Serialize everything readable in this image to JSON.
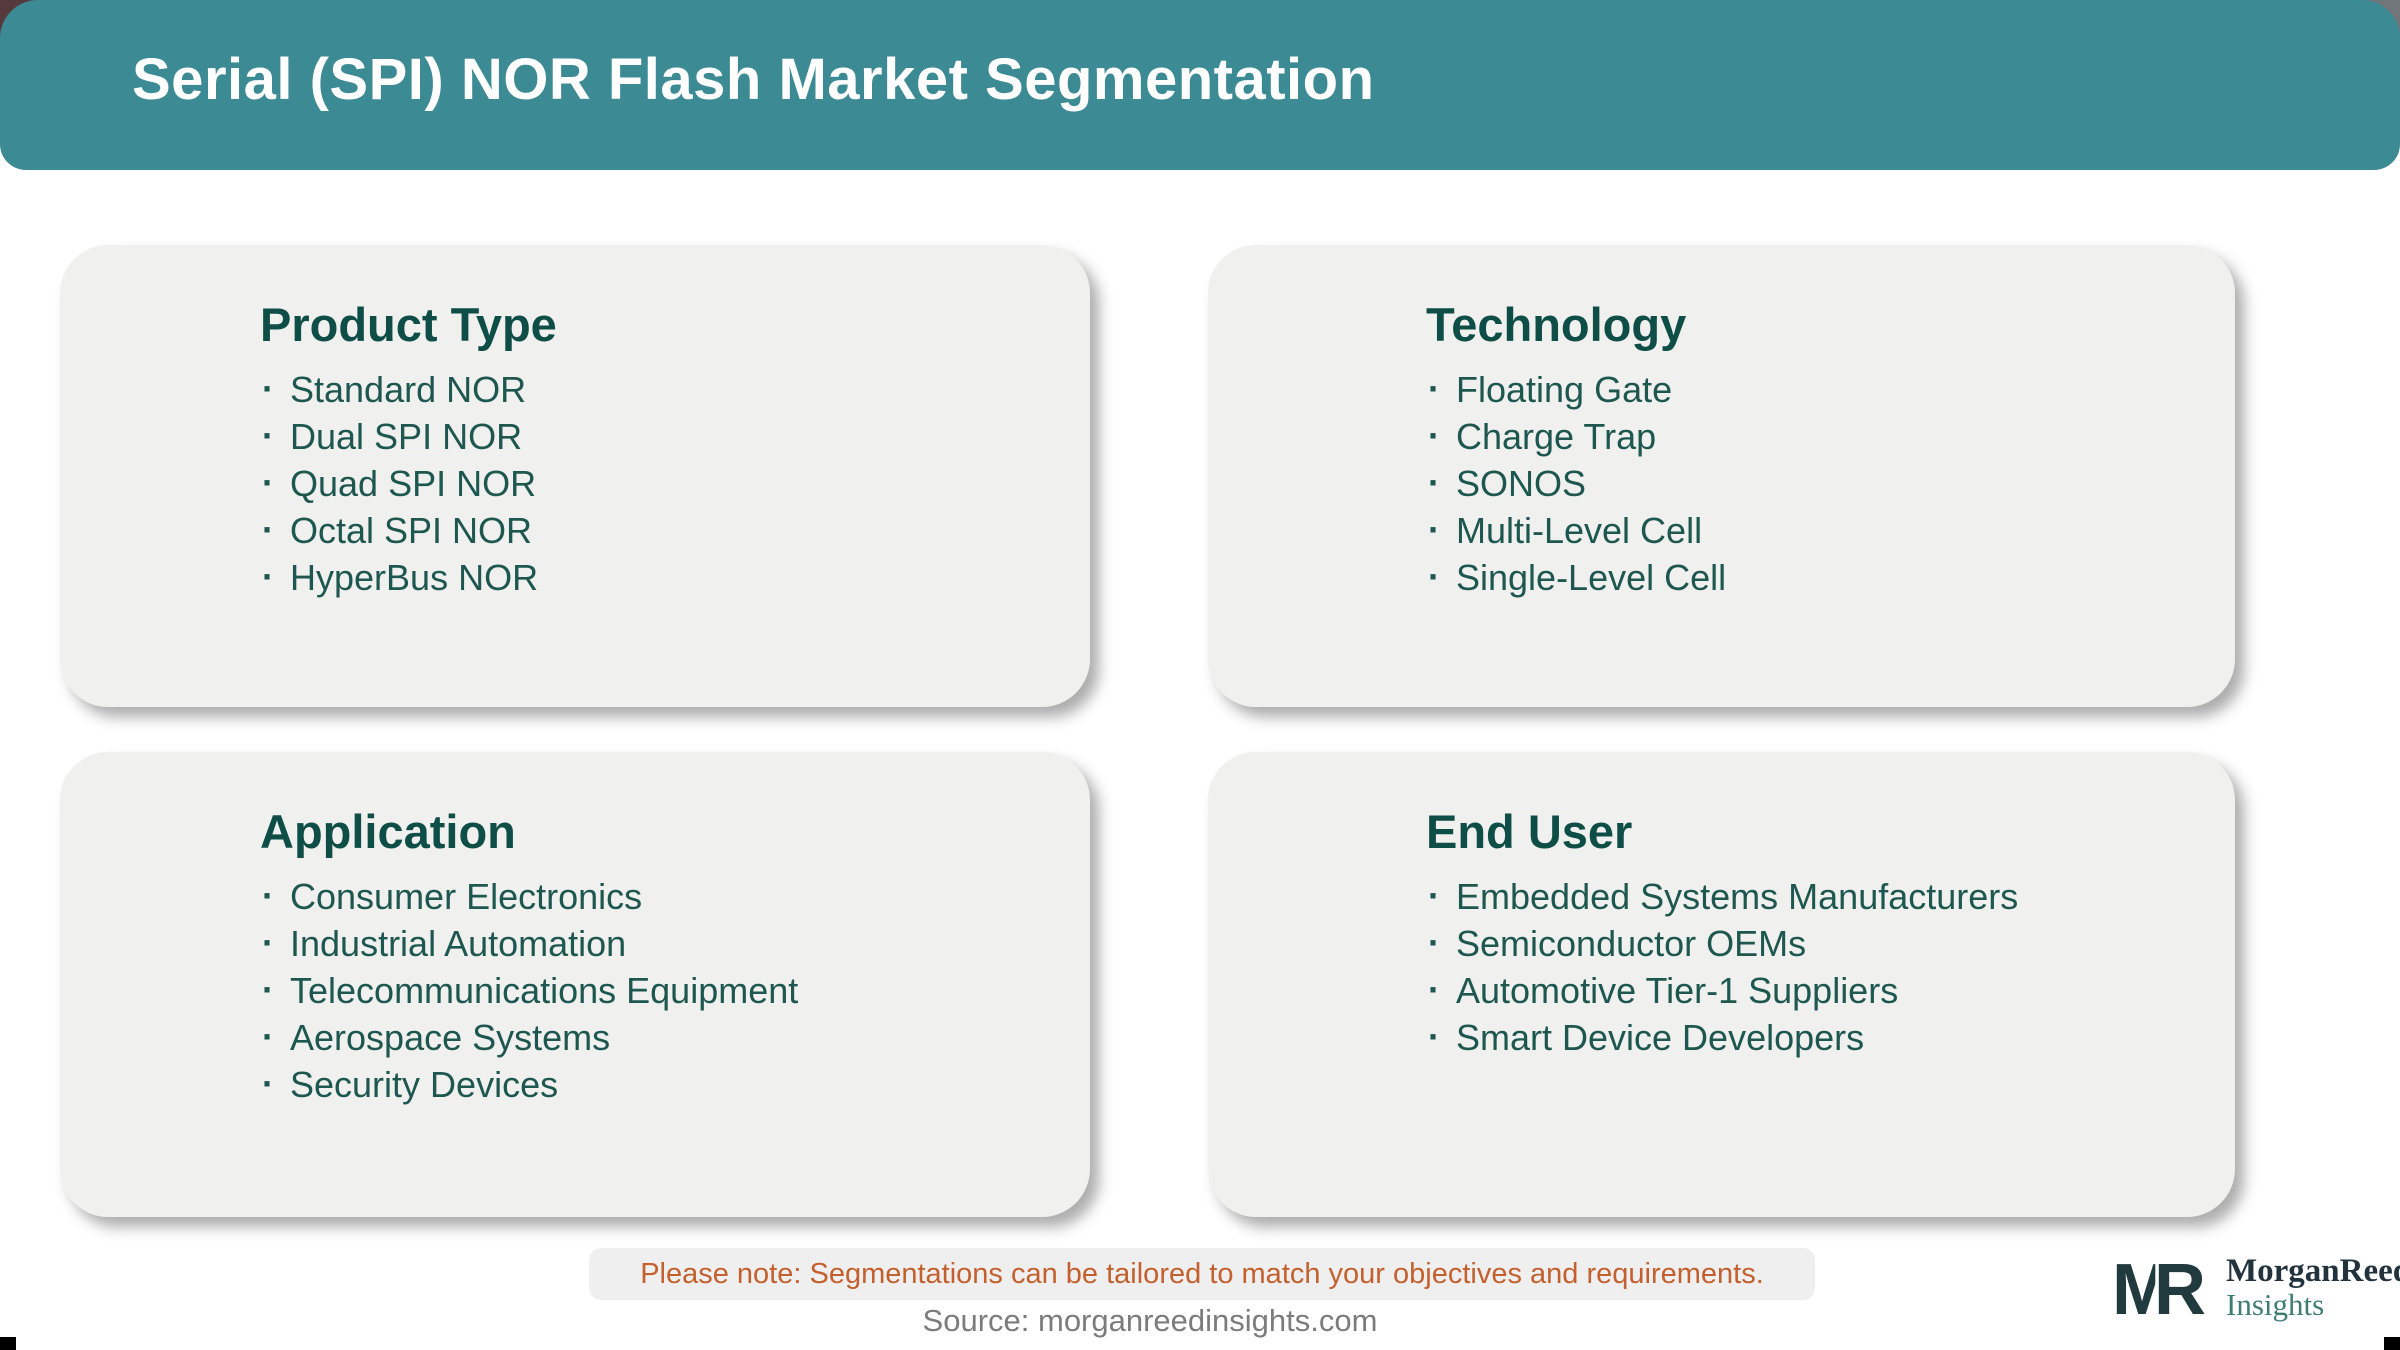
{
  "header": {
    "title": "Serial (SPI) NOR Flash Market Segmentation"
  },
  "cards": [
    {
      "title": "Product Type",
      "items": [
        "Standard NOR",
        "Dual SPI NOR",
        "Quad SPI NOR",
        "Octal SPI NOR",
        "HyperBus NOR"
      ]
    },
    {
      "title": "Technology",
      "items": [
        "Floating Gate",
        "Charge Trap",
        "SONOS",
        "Multi-Level Cell",
        "Single-Level Cell"
      ]
    },
    {
      "title": "Application",
      "items": [
        "Consumer Electronics",
        "Industrial Automation",
        "Telecommunications Equipment",
        "Aerospace Systems",
        "Security Devices"
      ]
    },
    {
      "title": "End User",
      "items": [
        "Embedded Systems Manufacturers",
        "Semiconductor OEMs",
        "Automotive Tier-1 Suppliers",
        "Smart Device Developers"
      ]
    }
  ],
  "footer": {
    "note": "Please note: Segmentations can be tailored to match your objectives and requirements.",
    "source": "Source: morganreedinsights.com",
    "logo": {
      "monogram_m": "M",
      "monogram_r": "R",
      "name": "MorganReed",
      "tagline": "Insights"
    }
  },
  "colors": {
    "page-bg": "#ffffff",
    "header-bg": "#3c8a94",
    "header-text": "#ffffff",
    "corner-left": "#56393c",
    "corner-right": "#70767a",
    "card-bg": "#f0f0ef",
    "heading-text": "#0e4e47",
    "bullet-text": "#1d574f",
    "note-bg": "#efeff0",
    "note-text": "#c4602e",
    "source-text": "#7c7c7c",
    "logo-mark": "#203a3e",
    "logo-name": "#22333e",
    "logo-tagline": "#3f7c72"
  }
}
